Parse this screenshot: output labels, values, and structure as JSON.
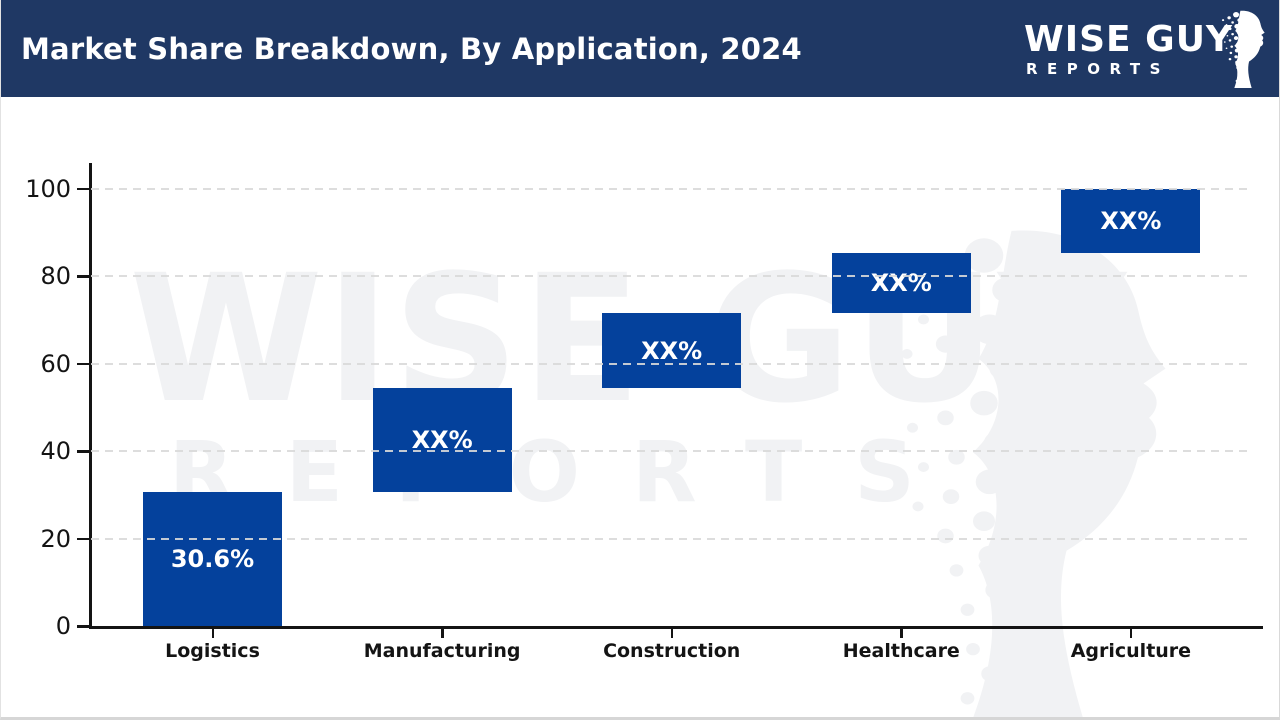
{
  "header": {
    "title": "Market Share Breakdown, By Application, 2024",
    "logo": {
      "name": "WISE GUY",
      "sub": "REPORTS"
    }
  },
  "watermark": {
    "name": "WISE GUY",
    "sub": "REPORTS"
  },
  "colors": {
    "header_bg": "#1f3864",
    "bar": "#04419c",
    "bar_label": "#ffffff",
    "grid": "#d9d9d9",
    "axis": "#141414",
    "watermark": "#f1f2f4",
    "background": "#ffffff"
  },
  "chart_data": {
    "type": "bar",
    "subtype": "waterfall",
    "title": "Market Share Breakdown, By Application, 2024",
    "categories": [
      "Logistics",
      "Manufacturing",
      "Construction",
      "Healthcare",
      "Agriculture"
    ],
    "segments": [
      {
        "category": "Logistics",
        "start": 0,
        "end": 30.6,
        "label": "30.6%"
      },
      {
        "category": "Manufacturing",
        "start": 30.6,
        "end": 54.4,
        "label": "XX%"
      },
      {
        "category": "Construction",
        "start": 54.4,
        "end": 71.5,
        "label": "XX%"
      },
      {
        "category": "Healthcare",
        "start": 71.5,
        "end": 85.2,
        "label": "XX%"
      },
      {
        "category": "Agriculture",
        "start": 85.2,
        "end": 100,
        "label": "XX%"
      }
    ],
    "xlabel": "",
    "ylabel": "",
    "ylim": [
      0,
      105
    ],
    "yticks": [
      0,
      20,
      40,
      60,
      80,
      100
    ],
    "grid": "horizontal dashed gridlines at y ticks, drawn above bars",
    "legend": "none",
    "bar_color": "#04419c",
    "value_label_position": "centered inside bar, white bold"
  }
}
